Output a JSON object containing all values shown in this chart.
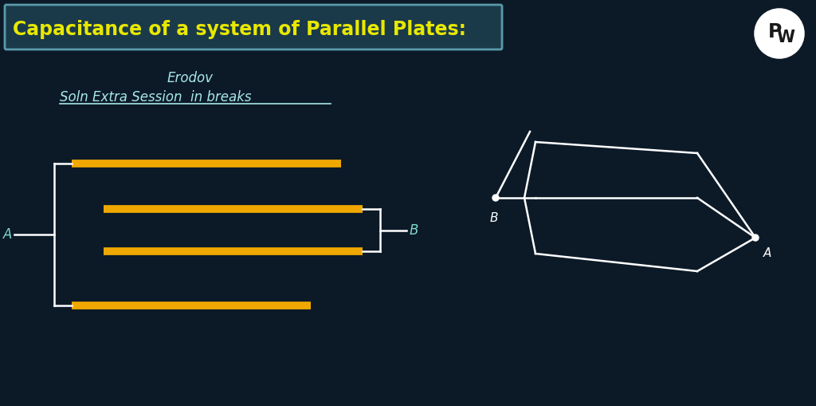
{
  "bg_color": "#0c1a28",
  "title_text": "Capacitance of a system of Parallel Plates:",
  "title_color": "#e8e800",
  "title_bg": "#1a3a4a",
  "title_border": "#5a9aaa",
  "hw_color": "white",
  "hw_underline_color": "white",
  "plate_color": "#f0a800",
  "wire_color": "white",
  "label_color": "#80d8c8",
  "schematic_wire_color": "white",
  "pw_circle_color": "white",
  "pw_text_P": "P",
  "pw_text_W": "W",
  "pw_text_color": "#1a1a1a"
}
